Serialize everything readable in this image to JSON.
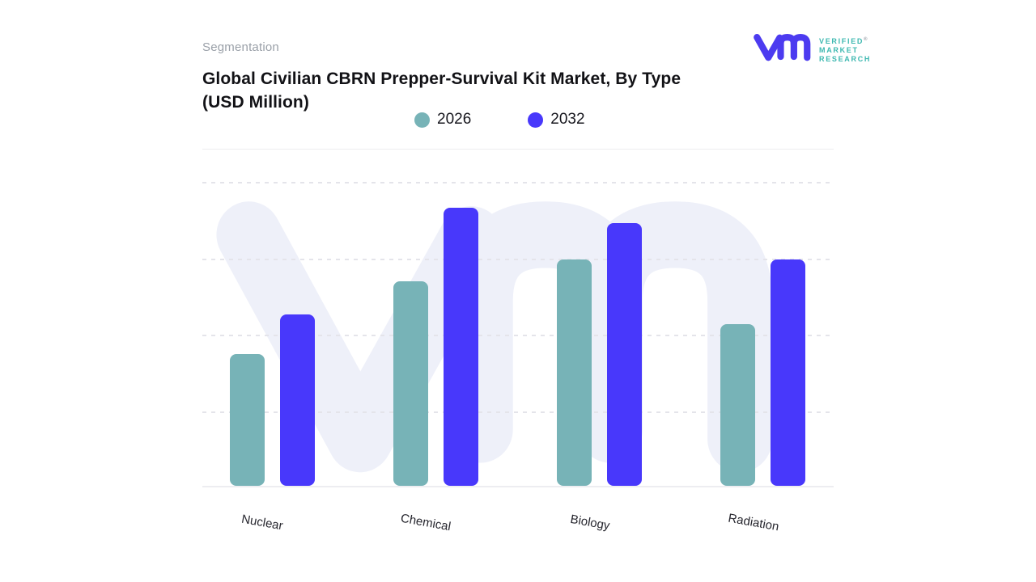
{
  "header": {
    "eyebrow": "Segmentation",
    "title_line1": "Global Civilian CBRN Prepper-Survival Kit Market, By Type",
    "title_line2": "(USD Million)"
  },
  "brand": {
    "name_line1": "VERIFIED",
    "name_line2": "MARKET",
    "name_line3": "RESEARCH",
    "registered_mark": "®",
    "glyph_color": "#4c3bf0",
    "text_color": "#3db8b0"
  },
  "colors": {
    "series_2026": "#77b3b7",
    "series_2032": "#4838fb",
    "watermark": "#eef0f9",
    "gridline": "#e4e4ea",
    "baseline": "#ededf1"
  },
  "chart_data": {
    "type": "bar",
    "title": "Global Civilian CBRN Prepper-Survival Kit Market, By Type (USD Million)",
    "xlabel": "",
    "ylabel": "",
    "categories": [
      "Nuclear",
      "Chemical",
      "Biology",
      "Radiation"
    ],
    "series": [
      {
        "name": "2026",
        "color": "#77b3b7",
        "values": [
          43,
          67,
          74,
          53
        ]
      },
      {
        "name": "2032",
        "color": "#4838fb",
        "values": [
          56,
          91,
          86,
          74
        ]
      }
    ],
    "ylim": [
      0,
      100
    ],
    "yticks": [
      0,
      25,
      50,
      75,
      100
    ],
    "ytick_labels_visible": false,
    "grid": "dashed horizontal",
    "legend_position": "top",
    "value_scale": "relative 0-100, estimated from bar heights (no numeric axis labels shown)"
  }
}
